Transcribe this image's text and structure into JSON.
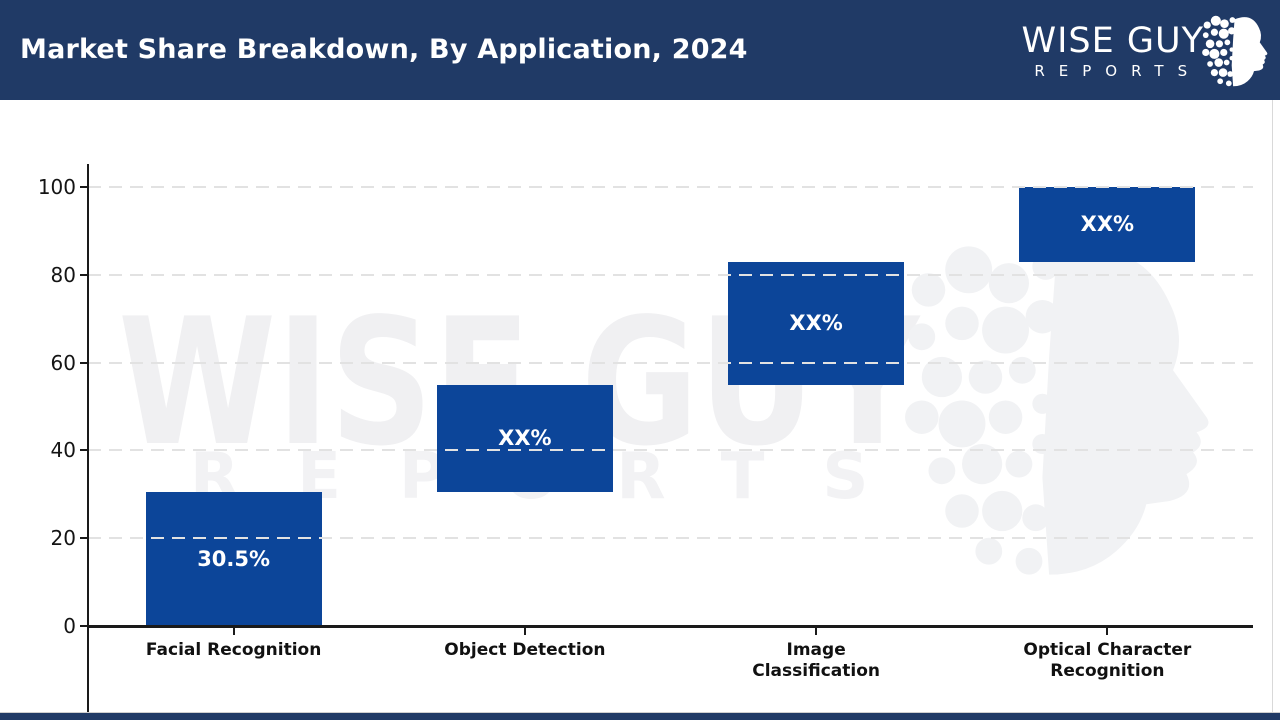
{
  "header": {
    "title": "Market Share Breakdown, By Application, 2024",
    "logo": {
      "brand": "WISE GUY",
      "brand_sub": "REPORTS"
    }
  },
  "watermark": {
    "brand": "WISE GUY",
    "brand_sub": "REPORTS"
  },
  "chart_data": {
    "type": "bar",
    "subtype": "waterfall",
    "title": "Market Share Breakdown, By Application, 2024",
    "categories": [
      {
        "label": "Facial Recognition",
        "lines": [
          "Facial Recognition"
        ]
      },
      {
        "label": "Object Detection",
        "lines": [
          "Object Detection"
        ]
      },
      {
        "label": "Image Classification",
        "lines": [
          "Image",
          "Classification"
        ]
      },
      {
        "label": "Optical Character Recognition",
        "lines": [
          "Optical Character",
          "Recognition"
        ]
      }
    ],
    "segments": [
      {
        "category": "Facial Recognition",
        "start": 0,
        "end": 30.5,
        "value_label": "30.5%"
      },
      {
        "category": "Object Detection",
        "start": 30.5,
        "end": 55,
        "value_label": "XX%"
      },
      {
        "category": "Image Classification",
        "start": 55,
        "end": 83,
        "value_label": "XX%"
      },
      {
        "category": "Optical Character Recognition",
        "start": 83,
        "end": 100,
        "value_label": "XX%"
      }
    ],
    "yticks": [
      0,
      20,
      40,
      60,
      80,
      100
    ],
    "ylim": [
      0,
      105
    ],
    "grid": "dashed-horizontal",
    "legend": "none",
    "colors": {
      "bar": "#0c4599",
      "gridline": "#e2e2e2",
      "axis": "#1a1a1a",
      "tick_label": "#141414",
      "bar_label_text": "#ffffff"
    }
  },
  "theme": {
    "header_bg": "#203a66",
    "footer_bg": "#203a66",
    "page_bg": "#ffffff",
    "watermark_color": "#f1f2f4"
  }
}
